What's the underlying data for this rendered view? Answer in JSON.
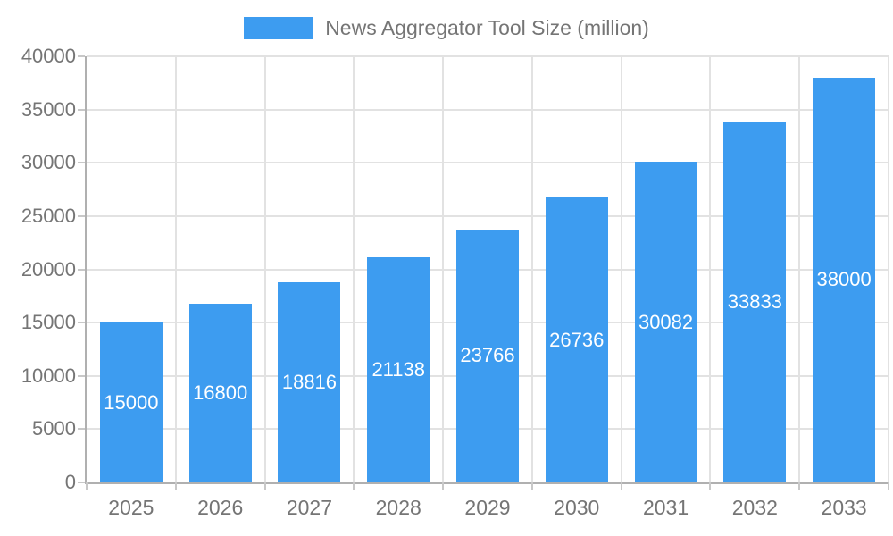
{
  "chart_data": {
    "type": "bar",
    "title": "News Aggregator Tool Size (million)",
    "categories": [
      "2025",
      "2026",
      "2027",
      "2028",
      "2029",
      "2030",
      "2031",
      "2032",
      "2033"
    ],
    "series": [
      {
        "name": "News Aggregator Tool Size (million)",
        "values": [
          15000,
          16800,
          18816,
          21138,
          23766,
          26736,
          30082,
          33833,
          38000
        ]
      }
    ],
    "value_labels": [
      "15000",
      "16800",
      "18816",
      "21138",
      "23766",
      "26736",
      "30082",
      "33833",
      "38000"
    ],
    "xlabel": "",
    "ylabel": "",
    "ylim": [
      0,
      40000
    ],
    "ytick_step": 5000,
    "yticks": [
      0,
      5000,
      10000,
      15000,
      20000,
      25000,
      30000,
      35000,
      40000
    ],
    "ytick_labels": [
      "0",
      "5000",
      "10000",
      "15000",
      "20000",
      "25000",
      "30000",
      "35000",
      "40000"
    ],
    "grid": true,
    "legend_position": "top-center",
    "value_label_position": "center-of-bar"
  },
  "colors": {
    "bar": "#3d9cf0",
    "grid": "#e2e2e2",
    "axis": "#b0b0b0",
    "tick": "#c8c8c8",
    "text": "#757575",
    "value_label": "#ffffff",
    "background": "#ffffff"
  }
}
